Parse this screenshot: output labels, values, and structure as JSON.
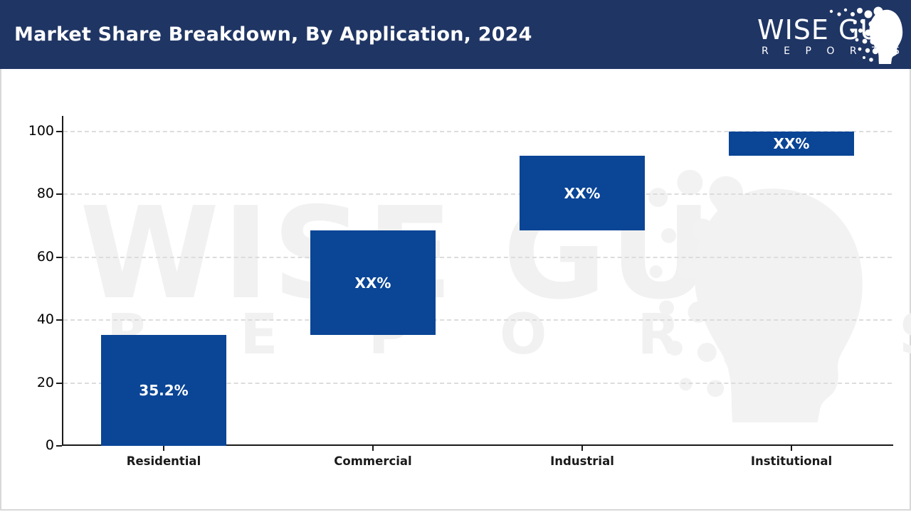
{
  "header": {
    "title": "Market Share Breakdown, By Application, 2024",
    "bg_color": "#1f3564",
    "logo": {
      "line1": "WISE GUY",
      "line2": "R E P O R T S"
    }
  },
  "watermark": {
    "line1": "WISE GUY",
    "line2": "R E P O R T S"
  },
  "chart_data": {
    "type": "bar",
    "subtype": "waterfall-floating-bars",
    "title": "Market Share Breakdown, By Application, 2024",
    "categories": [
      "Residential",
      "Commercial",
      "Industrial",
      "Institutional"
    ],
    "segments": [
      {
        "category": "Residential",
        "start": 0,
        "end": 35.2,
        "label": "35.2%"
      },
      {
        "category": "Commercial",
        "start": 35.2,
        "end": 68.4,
        "label": "XX%"
      },
      {
        "category": "Industrial",
        "start": 68.4,
        "end": 92.1,
        "label": "XX%"
      },
      {
        "category": "Institutional",
        "start": 92.1,
        "end": 100,
        "label": "XX%"
      }
    ],
    "yticks": [
      0,
      20,
      40,
      60,
      80,
      100
    ],
    "ylim": [
      0,
      105
    ],
    "xlabel": "",
    "ylabel": "",
    "grid": "horizontal-dashed",
    "legend": "none",
    "bar_color": "#0a4596",
    "label_color": "#ffffff"
  }
}
